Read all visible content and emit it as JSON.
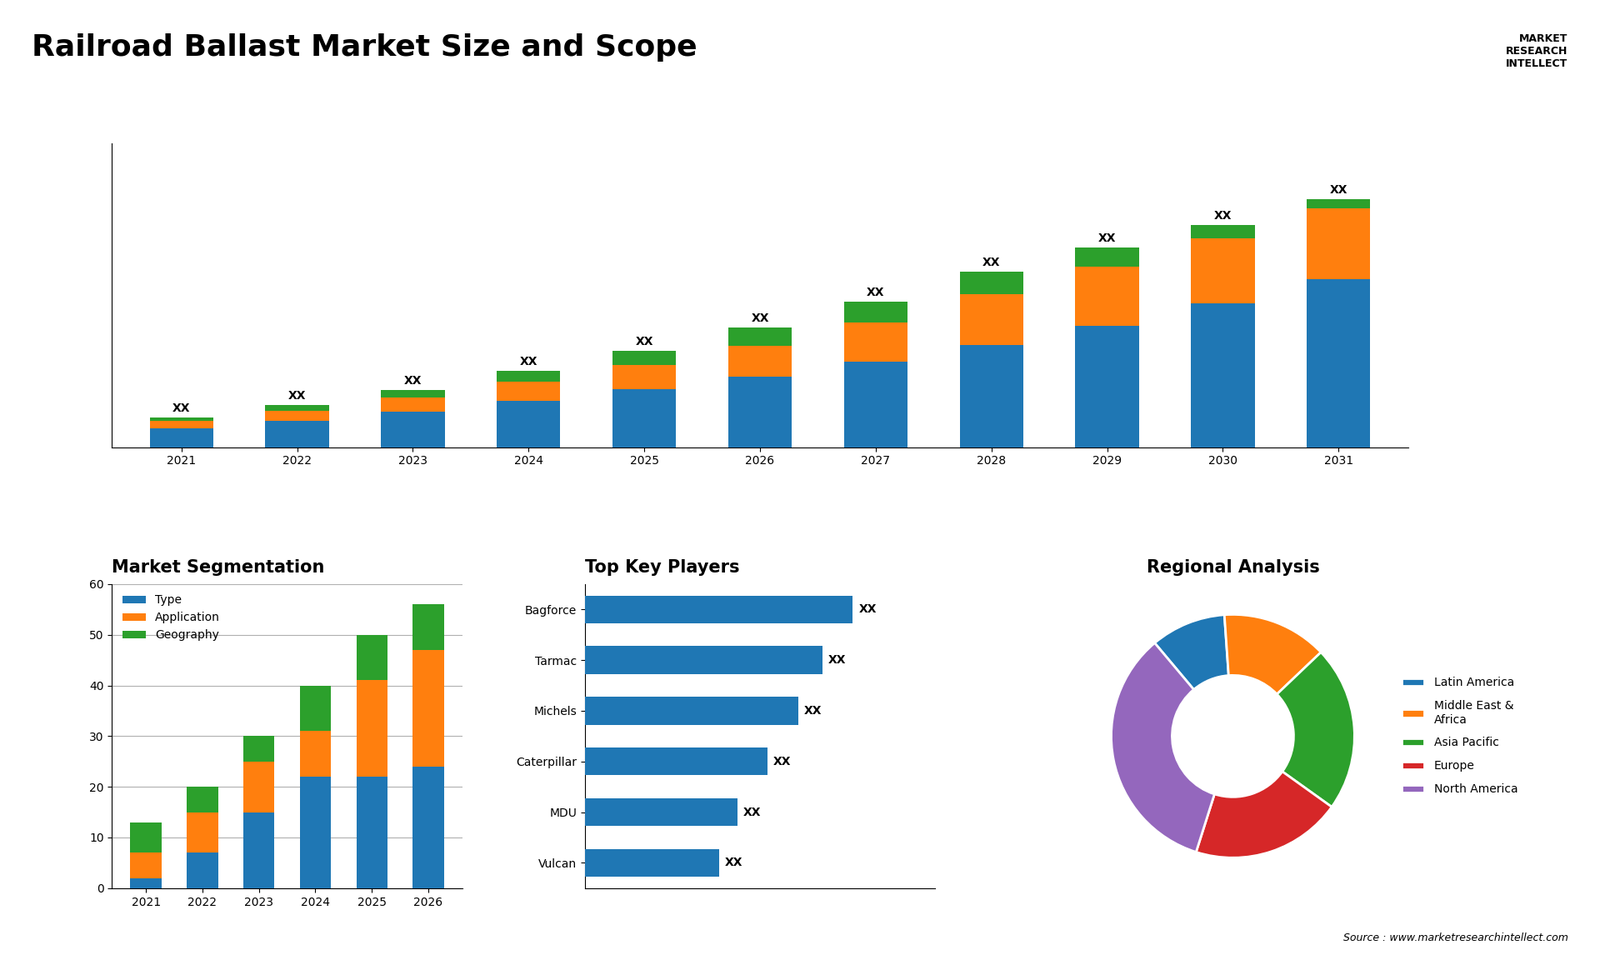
{
  "title": "Railroad Ballast Market Size and Scope",
  "annotations": [
    "MARKET\nRESEARCH\nINTELLECT",
    "Source : www.marketresearchintellect.com"
  ],
  "chart_data": [
    {
      "type": "bar",
      "stacked": true,
      "categories": [
        "2021",
        "2022",
        "2023",
        "2024",
        "2025",
        "2026",
        "2027",
        "2028",
        "2029",
        "2030",
        "2031"
      ],
      "series": [
        {
          "values": [
            1.0,
            1.4,
            1.9,
            2.5,
            3.1,
            3.8,
            4.6,
            5.5,
            6.5,
            7.7,
            9.0
          ]
        },
        {
          "values": [
            0.4,
            0.55,
            0.75,
            1.0,
            1.3,
            1.65,
            2.1,
            2.7,
            3.2,
            3.5,
            3.8
          ]
        },
        {
          "values": [
            0.2,
            0.3,
            0.4,
            0.6,
            0.75,
            0.95,
            1.1,
            1.2,
            1.0,
            0.7,
            0.5
          ]
        }
      ],
      "value_labels": [
        "XX",
        "XX",
        "XX",
        "XX",
        "XX",
        "XX",
        "XX",
        "XX",
        "XX",
        "XX",
        "XX"
      ],
      "ylim": [
        0,
        16.3
      ],
      "tick_labels": "x"
    },
    {
      "type": "bar",
      "stacked": true,
      "title": "Market Segmentation",
      "categories": [
        "2021",
        "2022",
        "2023",
        "2024",
        "2025",
        "2026"
      ],
      "series": [
        {
          "name": "Type",
          "values": [
            2,
            7,
            15,
            22,
            22,
            24
          ]
        },
        {
          "name": "Application",
          "values": [
            5,
            8,
            10,
            9,
            19,
            23
          ]
        },
        {
          "name": "Geography",
          "values": [
            6,
            5,
            5,
            9,
            9,
            9
          ]
        }
      ],
      "ylim": [
        0,
        60
      ],
      "yticks": [
        0,
        10,
        20,
        30,
        40,
        50,
        60
      ],
      "grid": true,
      "legend": "upper left"
    },
    {
      "type": "bar",
      "orientation": "horizontal",
      "title": "Top Key Players",
      "categories": [
        "Bagforce",
        "Tarmac",
        "Michels",
        "Caterpillar",
        "MDU",
        "Vulcan"
      ],
      "values": [
        0.88,
        0.78,
        0.7,
        0.6,
        0.5,
        0.44
      ],
      "value_labels": [
        "XX",
        "XX",
        "XX",
        "XX",
        "XX",
        "XX"
      ],
      "xlim": [
        0,
        1.15
      ],
      "tick_labels": "y"
    },
    {
      "type": "donut",
      "title": "Regional Analysis",
      "categories": [
        "Latin America",
        "Middle East &\nAfrica",
        "Asia Pacific",
        "Europe",
        "North America"
      ],
      "values": [
        10,
        14,
        22,
        20,
        34
      ],
      "legend": "center left"
    }
  ]
}
